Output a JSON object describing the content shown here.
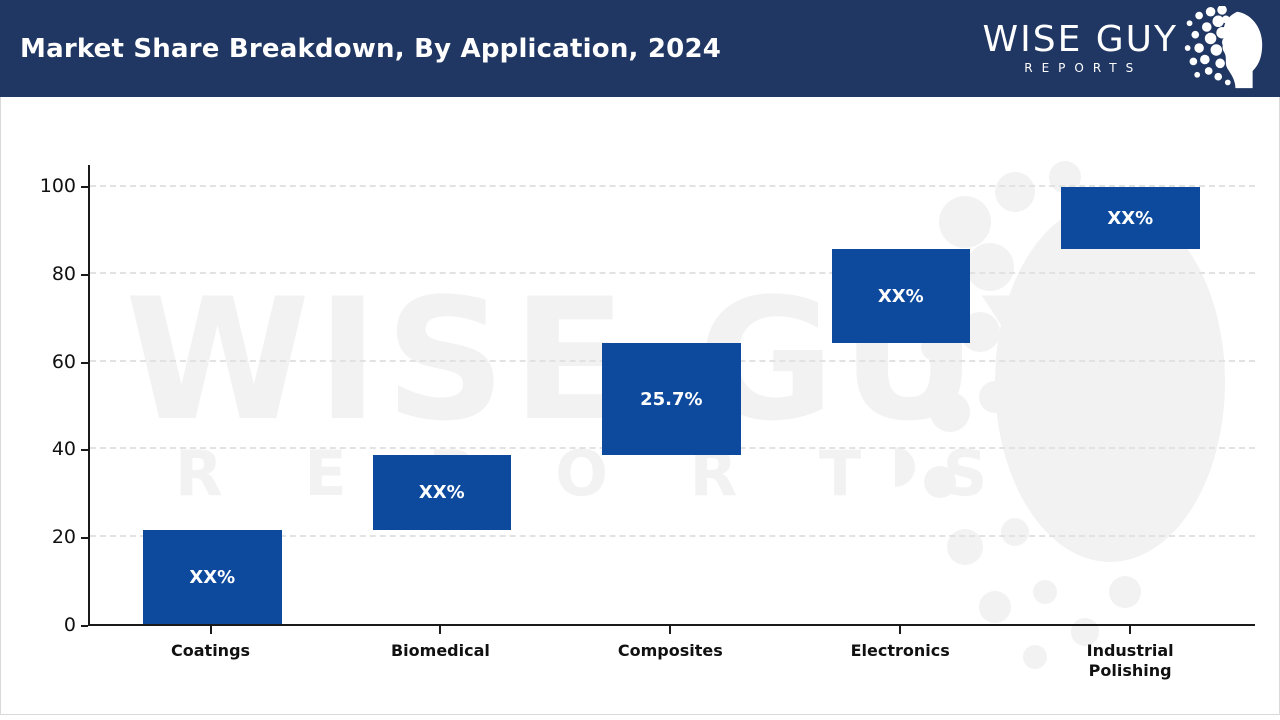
{
  "header": {
    "title": "Market Share Breakdown, By Application, 2024",
    "logo": {
      "line1": "WISE GUY",
      "line2": "REPORTS"
    }
  },
  "watermark": {
    "line1": "WISE GUY",
    "line2": "R E P O R T S"
  },
  "colors": {
    "header_bg": "#213763",
    "bar": "#0D4A9D",
    "bar_label": "#FFFFFF",
    "gridline": "#E2E2E2",
    "axis": "#1A1A1A"
  },
  "chart_data": {
    "type": "bar",
    "subtype": "waterfall",
    "title": "Market Share Breakdown, By Application, 2024",
    "categories": [
      "Coatings",
      "Biomedical",
      "Composites",
      "Electronics",
      "Industrial Polishing"
    ],
    "segments": [
      {
        "category": "Coatings",
        "start": 0,
        "end": 21.4,
        "label": "XX%"
      },
      {
        "category": "Biomedical",
        "start": 21.4,
        "end": 38.6,
        "label": "XX%"
      },
      {
        "category": "Composites",
        "start": 38.6,
        "end": 64.3,
        "label": "25.7%"
      },
      {
        "category": "Electronics",
        "start": 64.3,
        "end": 85.7,
        "label": "XX%"
      },
      {
        "category": "Industrial Polishing",
        "start": 85.7,
        "end": 100,
        "label": "XX%"
      }
    ],
    "xlabel": "",
    "ylabel": "",
    "yticks": [
      0,
      20,
      40,
      60,
      80,
      100
    ],
    "ylim": [
      0,
      105
    ],
    "grid": "horizontal-dashed",
    "legend": "none",
    "bar_color": "#0D4A9D",
    "bar_label_color": "#FFFFFF"
  }
}
